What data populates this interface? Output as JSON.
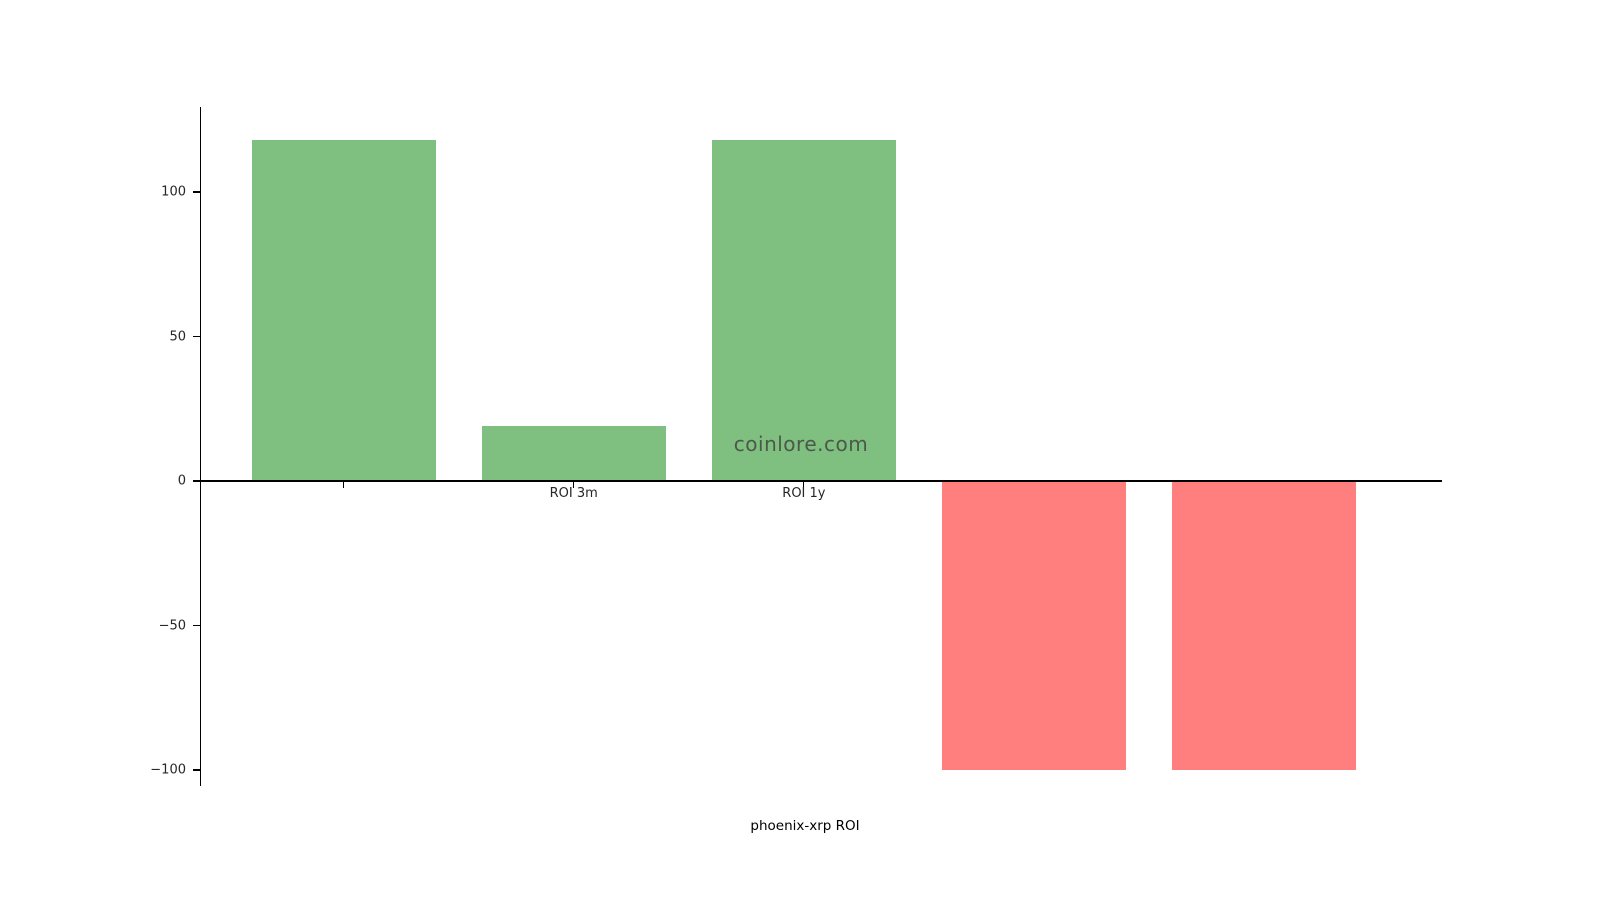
{
  "chart_data": {
    "type": "bar",
    "categories": [
      "",
      "ROI 3m",
      "ROI 1y",
      "",
      ""
    ],
    "values": [
      118,
      19,
      118,
      -100,
      -100
    ],
    "bar_color_roles": [
      "positive",
      "positive",
      "positive",
      "negative",
      "negative"
    ],
    "title": "",
    "xlabel": "phoenix-xrp ROI",
    "ylabel": "",
    "ylim": [
      -107,
      129
    ],
    "yticks": [
      {
        "value": 100,
        "label": "100"
      },
      {
        "value": 50,
        "label": "50"
      },
      {
        "value": 0,
        "label": "0"
      },
      {
        "value": -50,
        "label": "−50"
      },
      {
        "value": -100,
        "label": "−100"
      }
    ],
    "grid": false,
    "legend": null
  },
  "watermark": {
    "text": "coinlore.com"
  },
  "style": {
    "positive_color": "#7fbf7f",
    "negative_color": "#ff7f7f",
    "axis_color": "#000000",
    "tick_label_color": "#262626",
    "watermark_color": "#3c3c3c",
    "background": "#ffffff"
  }
}
